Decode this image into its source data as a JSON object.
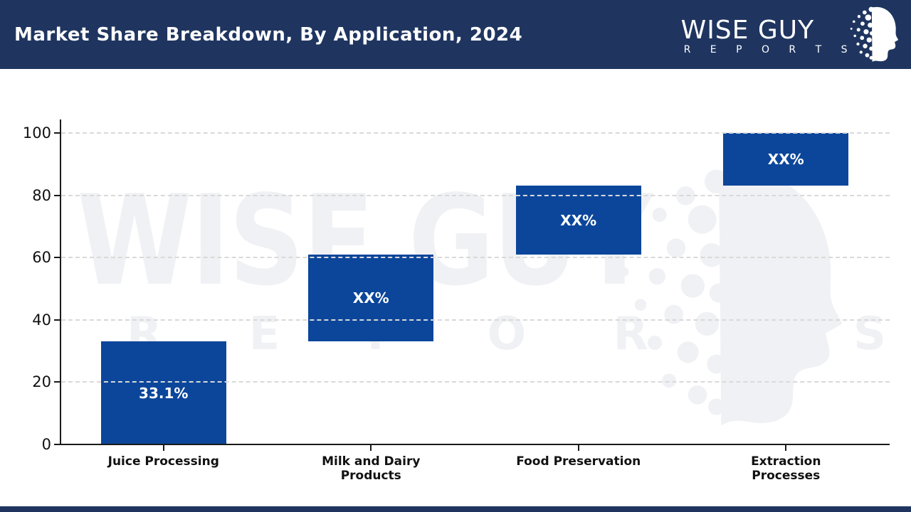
{
  "header": {
    "title": "Market Share Breakdown, By Application, 2024",
    "bg_color": "#1F3560",
    "logo": {
      "line1": "WISE GUY",
      "line2": "R E P O R T S"
    }
  },
  "watermark": {
    "line1": "WISE GUY",
    "line2": "R E P O R T S",
    "color": "#F0F1F4"
  },
  "chart_data": {
    "type": "bar",
    "subtype": "waterfall",
    "title": "Market Share Breakdown, By Application, 2024",
    "xlabel": "",
    "ylabel": "",
    "ylim": [
      0,
      100
    ],
    "yticks": [
      0,
      20,
      40,
      60,
      80,
      100
    ],
    "grid": "horizontal-dashed",
    "legend": "none",
    "bar_color": "#0C469B",
    "grid_color": "#D9D9D9",
    "axis_color": "#1A1A1A",
    "categories": [
      "Juice Processing",
      "Milk and Dairy\nProducts",
      "Food Preservation",
      "Extraction\nProcesses"
    ],
    "segments": [
      {
        "category": "Juice Processing",
        "start": 0,
        "end": 33.1,
        "label": "33.1%"
      },
      {
        "category": "Milk and Dairy Products",
        "start": 33.1,
        "end": 61,
        "label": "XX%"
      },
      {
        "category": "Food Preservation",
        "start": 61,
        "end": 83,
        "label": "XX%"
      },
      {
        "category": "Extraction Processes",
        "start": 83,
        "end": 100,
        "label": "XX%"
      }
    ]
  }
}
